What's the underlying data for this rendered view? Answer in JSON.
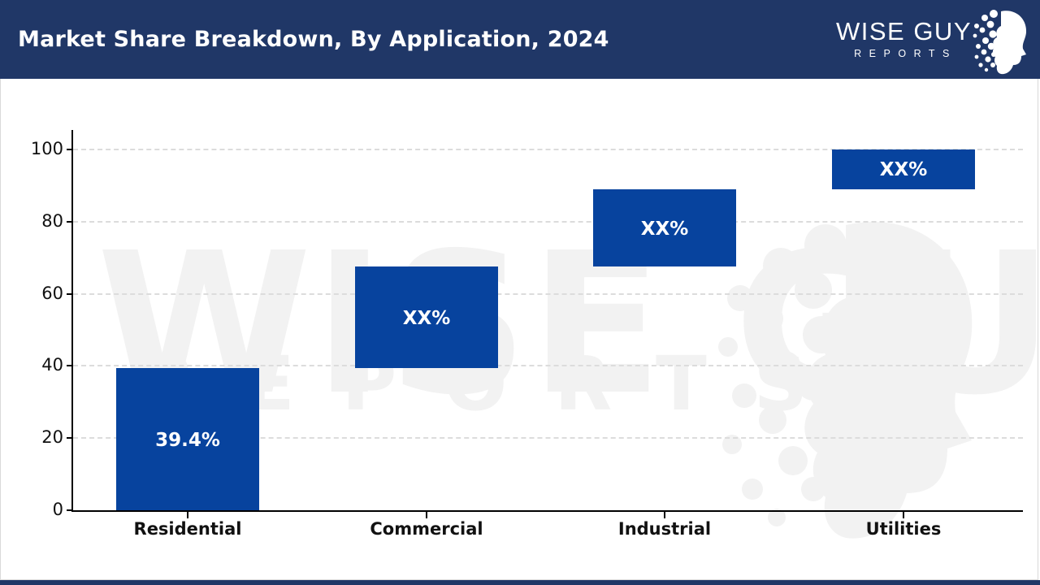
{
  "header": {
    "title": "Market Share Breakdown, By Application, 2024",
    "logo": {
      "wordmark": "WISE GUY",
      "subtext": "REPORTS"
    }
  },
  "watermark": {
    "wordmark": "WISE GUY",
    "subtext": "REPORTS"
  },
  "chart_data": {
    "type": "bar",
    "subtype": "waterfall-floating-bars",
    "title": "Market Share Breakdown, By Application, 2024",
    "categories": [
      "Residential",
      "Commercial",
      "Industrial",
      "Utilities"
    ],
    "bars": [
      {
        "category": "Residential",
        "start": 0,
        "end": 39.4,
        "label": "39.4%"
      },
      {
        "category": "Commercial",
        "start": 39.4,
        "end": 67.5,
        "label": "XX%"
      },
      {
        "category": "Industrial",
        "start": 67.5,
        "end": 89.0,
        "label": "XX%"
      },
      {
        "category": "Utilities",
        "start": 89.0,
        "end": 100.0,
        "label": "XX%"
      }
    ],
    "yticks": [
      0,
      20,
      40,
      60,
      80,
      100
    ],
    "ylim": [
      0,
      105
    ],
    "xlabel": "",
    "ylabel": "",
    "grid": "horizontal-dashed",
    "legend": "none"
  },
  "colors": {
    "header_bg": "#203767",
    "footer_bg": "#203767",
    "bar_fill": "#07439e",
    "bar_label": "#ffffff",
    "axis": "#000000",
    "gridline": "#dcdcdc",
    "watermark": "#f2f2f2",
    "card_border": "#d9d9d9",
    "background": "#ffffff"
  }
}
